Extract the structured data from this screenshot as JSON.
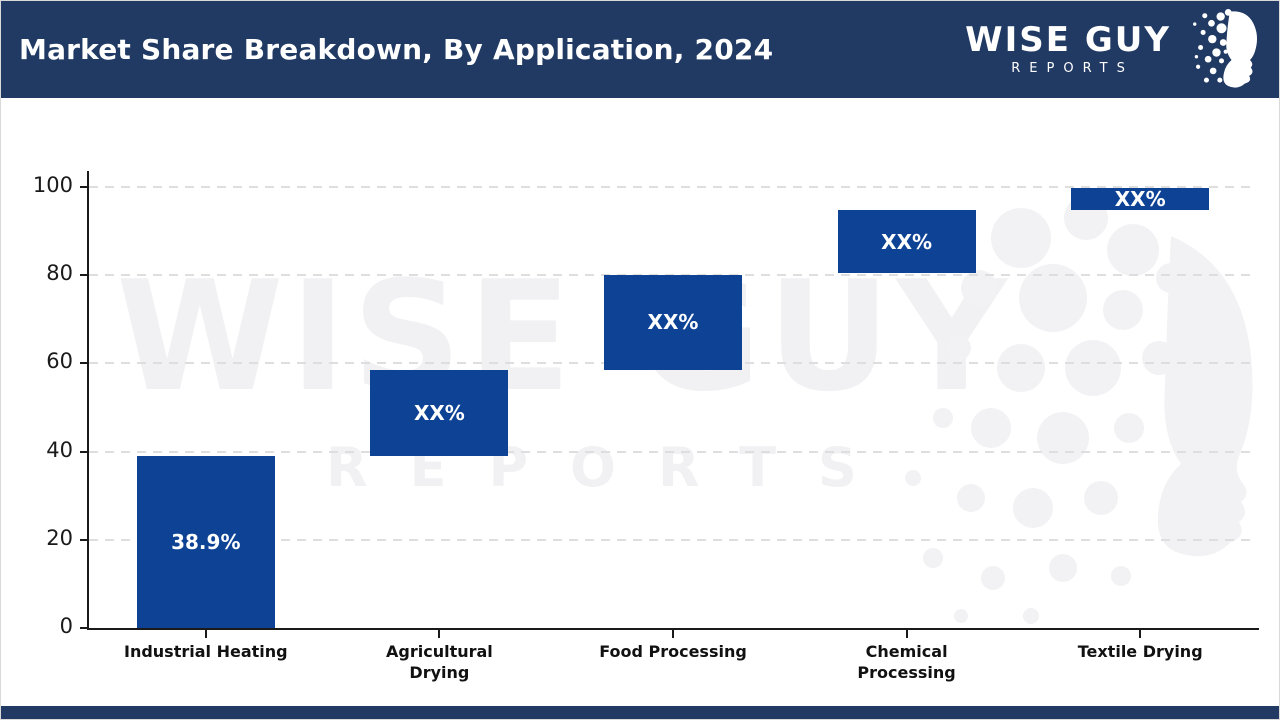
{
  "header": {
    "title": "Market Share Breakdown, By Application, 2024",
    "logo_line1": "WISE GUY",
    "logo_line2": "REPORTS"
  },
  "watermark": {
    "line1": "WISE GUY",
    "line2": "REPORTS"
  },
  "colors": {
    "header_navy": "#213a64",
    "bar_blue": "#0d4294"
  },
  "chart_data": {
    "type": "bar",
    "variant": "waterfall",
    "title": "Market Share Breakdown, By Application, 2024",
    "xlabel": "",
    "ylabel": "",
    "ylim": [
      0,
      100
    ],
    "yticks": [
      0,
      20,
      40,
      60,
      80,
      100
    ],
    "grid": "horizontal dashed light-gray",
    "legend": "none",
    "bar_color": "#0d4294",
    "categories": [
      "Industrial Heating",
      "Agricultural Drying",
      "Food Processing",
      "Chemical Processing",
      "Textile Drying"
    ],
    "values": [
      38.9,
      19.6,
      21.5,
      14.4,
      4.9
    ],
    "value_labels": [
      "38.9%",
      "XX%",
      "XX%",
      "XX%",
      "XX%"
    ],
    "segments": [
      {
        "category": "Industrial Heating",
        "label_lines": [
          "Industrial Heating"
        ],
        "start": 0,
        "end": 38.9,
        "value_label": "38.9%"
      },
      {
        "category": "Agricultural Drying",
        "label_lines": [
          "Agricultural",
          "Drying"
        ],
        "start": 38.9,
        "end": 58.5,
        "value_label": "XX%"
      },
      {
        "category": "Food Processing",
        "label_lines": [
          "Food Processing"
        ],
        "start": 58.6,
        "end": 80.1,
        "value_label": "XX%"
      },
      {
        "category": "Chemical Processing",
        "label_lines": [
          "Chemical",
          "Processing"
        ],
        "start": 80.4,
        "end": 94.8,
        "value_label": "XX%"
      },
      {
        "category": "Textile Drying",
        "label_lines": [
          "Textile Drying"
        ],
        "start": 94.9,
        "end": 99.8,
        "value_label": "XX%"
      }
    ]
  }
}
